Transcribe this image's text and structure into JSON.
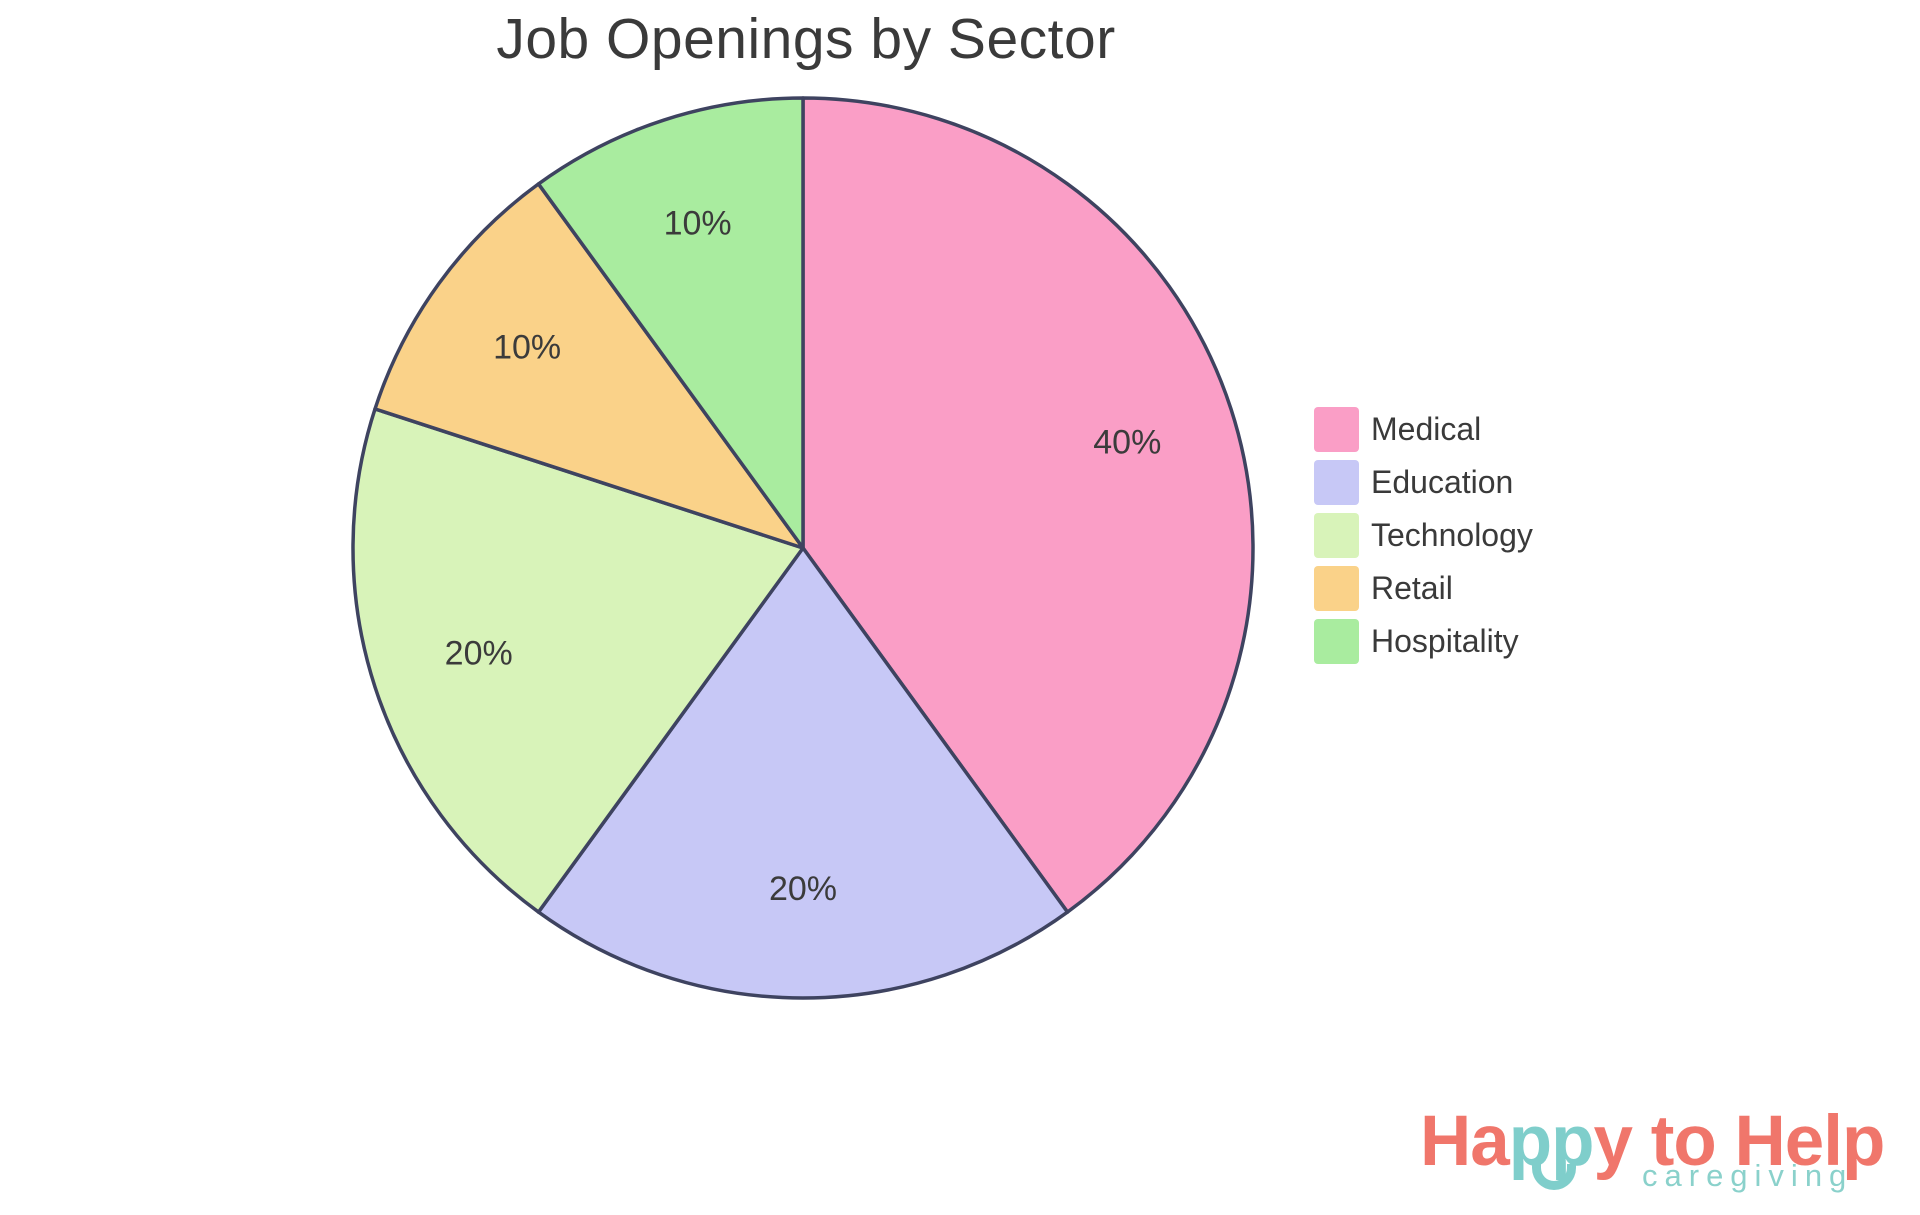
{
  "title": "Job Openings by Sector",
  "chart_data": {
    "type": "pie",
    "title": "Job Openings by Sector",
    "start_angle_deg": 0,
    "direction": "clockwise",
    "legend_position": "right",
    "stroke_color": "#3e4360",
    "stroke_width": 3.5,
    "label_color": "#3b3b3b",
    "segments": [
      {
        "label": "Medical",
        "value": 40,
        "pct_label": "40%",
        "color": "#fa9ec6"
      },
      {
        "label": "Education",
        "value": 20,
        "pct_label": "20%",
        "color": "#c7c8f6"
      },
      {
        "label": "Technology",
        "value": 20,
        "pct_label": "20%",
        "color": "#d8f3b9"
      },
      {
        "label": "Retail",
        "value": 10,
        "pct_label": "10%",
        "color": "#fad289"
      },
      {
        "label": "Hospitality",
        "value": 10,
        "pct_label": "10%",
        "color": "#a9ec9f"
      }
    ]
  },
  "branding": {
    "logo_pre": "Ha",
    "logo_mid": "pp",
    "logo_post": "y to Help",
    "logo_sub": "caregiving",
    "coral": "#f0766b",
    "teal": "#7fcecb",
    "sub_teal": "#8ad1cb"
  }
}
